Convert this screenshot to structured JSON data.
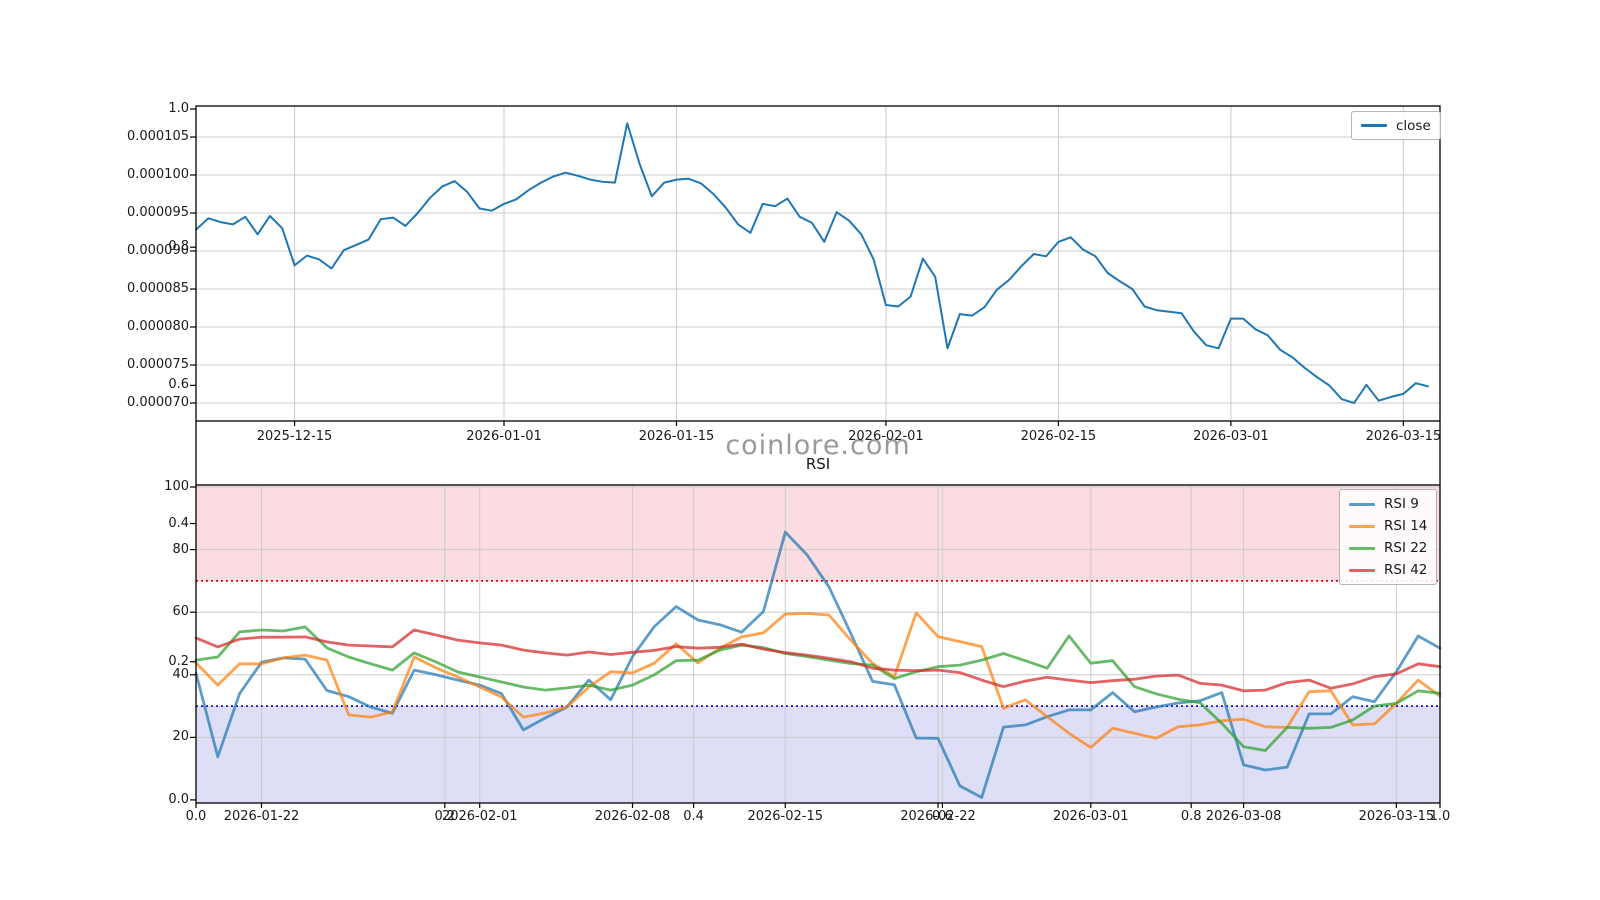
{
  "watermark_text": "coinlore.com",
  "figure_axis": {
    "x_labels": [
      "0.0",
      "0.2",
      "0.4",
      "0.6",
      "0.8",
      "1.0"
    ],
    "y_labels": [
      "1.0",
      "0.8",
      "0.6",
      "0.4",
      "0.2",
      "0.0"
    ]
  },
  "colors": {
    "close_line": "#1f77b4",
    "rsi9_line": "#1f77b4",
    "rsi14_line": "#ff7f0e",
    "rsi22_line": "#2ca02c",
    "rsi42_line": "#d62728",
    "overbought_band": "#fbdce0",
    "oversold_band": "#dedef6",
    "overbought_dotted_line": "#e8000b",
    "oversold_dotted_line": "#1414cc",
    "grid": "#cccccc",
    "spine": "#000000",
    "watermark": "#9a9a9a"
  },
  "chart_data": [
    {
      "type": "line",
      "title": "",
      "legend": [
        "close"
      ],
      "legend_position": "upper right",
      "grid": true,
      "x_tick_labels": [
        "2025-12-15",
        "2026-01-01",
        "2026-01-15",
        "2026-02-01",
        "2026-02-15",
        "2026-03-01",
        "2026-03-15"
      ],
      "x_tick_day_index": [
        8,
        25,
        39,
        56,
        70,
        84,
        98
      ],
      "y_tick_labels": [
        "0.000105",
        "0.000100",
        "0.000095",
        "0.000090",
        "0.000085",
        "0.000080",
        "0.000075",
        "0.000070"
      ],
      "y_tick_values_micro": [
        105,
        100,
        95,
        90,
        85,
        80,
        75,
        70
      ],
      "ylim_micro": [
        67.6,
        109.1
      ],
      "value_unit_note": "values_micro are price x 0.000001",
      "series": [
        {
          "name": "close",
          "color_key": "close_line",
          "values_micro": [
            92.8,
            94.3,
            93.8,
            93.5,
            94.5,
            92.2,
            94.6,
            93.0,
            88.1,
            89.4,
            88.9,
            87.7,
            90.1,
            90.8,
            91.5,
            94.2,
            94.4,
            93.3,
            95.0,
            97.0,
            98.5,
            99.2,
            97.8,
            95.6,
            95.3,
            96.2,
            96.8,
            98.0,
            99.0,
            99.8,
            100.3,
            99.9,
            99.4,
            99.1,
            99.0,
            106.8,
            101.5,
            97.2,
            99.0,
            99.4,
            99.5,
            98.9,
            97.5,
            95.7,
            93.5,
            92.4,
            96.2,
            95.9,
            96.9,
            94.5,
            93.7,
            91.2,
            95.1,
            94.0,
            92.2,
            88.9,
            82.9,
            82.7,
            84.0,
            89.0,
            86.6,
            77.2,
            81.7,
            81.5,
            82.6,
            84.9,
            86.2,
            88.0,
            89.6,
            89.3,
            91.2,
            91.8,
            90.2,
            89.3,
            87.1,
            86.0,
            85.0,
            82.7,
            82.2,
            82.0,
            81.8,
            79.4,
            77.6,
            77.2,
            81.1,
            81.1,
            79.7,
            78.9,
            77.0,
            76.0,
            74.6,
            73.4,
            72.3,
            70.5,
            70.0,
            72.4,
            70.3,
            70.8,
            71.2,
            72.6,
            72.2
          ]
        }
      ]
    },
    {
      "type": "line",
      "title": "RSI",
      "legend": [
        "RSI 9",
        "RSI 14",
        "RSI 22",
        "RSI 42"
      ],
      "legend_position": "upper right",
      "grid": true,
      "x_tick_labels": [
        "2026-01-22",
        "2026-02-01",
        "2026-02-08",
        "2026-02-15",
        "2026-02-22",
        "2026-03-01",
        "2026-03-08",
        "2026-03-15"
      ],
      "x_tick_day_index": [
        3,
        13,
        20,
        27,
        34,
        41,
        48,
        55
      ],
      "y_tick_labels": [
        "100",
        "80",
        "60",
        "40",
        "20"
      ],
      "y_tick_values": [
        100,
        80,
        60,
        40,
        20
      ],
      "ylim": [
        -1,
        100.6
      ],
      "overbought_level": 70,
      "oversold_level": 30,
      "series": [
        {
          "name": "RSI 9",
          "color_key": "rsi9_line",
          "values": [
            40.5,
            13.8,
            34,
            44,
            45.4,
            45,
            35,
            33,
            29.7,
            27.7,
            41.5,
            40,
            38.3,
            36.7,
            34,
            22.4,
            26.2,
            29.7,
            38.3,
            32,
            45.8,
            55.4,
            61.8,
            57.5,
            56,
            53.6,
            60.2,
            85.6,
            78.3,
            68.1,
            53.3,
            37.9,
            36.8,
            19.8,
            19.7,
            4.5,
            0.8,
            23.3,
            24,
            26.6,
            28.8,
            28.8,
            34.3,
            28.2,
            29.7,
            31,
            31.7,
            34.3,
            11.2,
            9.6,
            10.5,
            27.5,
            27.5,
            33,
            31.4,
            41,
            52.4,
            48.5
          ]
        },
        {
          "name": "RSI 14",
          "color_key": "rsi14_line",
          "values": [
            43.8,
            36.7,
            43.5,
            43.5,
            45.4,
            46.3,
            44.7,
            27.2,
            26.5,
            28.1,
            45.7,
            42.2,
            39.3,
            36.1,
            32.9,
            26.5,
            27.8,
            29.7,
            36.1,
            41,
            40.6,
            43.7,
            49.9,
            43.8,
            48.5,
            52.1,
            53.4,
            59.4,
            59.6,
            59.1,
            51.1,
            43.6,
            39.4,
            59.8,
            52.2,
            50.6,
            49,
            29.3,
            32,
            26.6,
            21.3,
            16.8,
            22.9,
            21.3,
            19.7,
            23.4,
            24,
            25.3,
            25.8,
            23.4,
            23.2,
            34.6,
            34.9,
            24,
            24.3,
            30.9,
            38.3,
            33.2
          ]
        },
        {
          "name": "RSI 22",
          "color_key": "rsi22_line",
          "values": [
            44.7,
            45.7,
            53.7,
            54.3,
            54,
            55.3,
            48.6,
            45.7,
            43.5,
            41.5,
            47,
            44.1,
            40.9,
            39.3,
            37.7,
            36.1,
            35.1,
            35.8,
            36.7,
            35.1,
            36.7,
            40,
            44.5,
            44.7,
            47.9,
            49.5,
            48.7,
            46.8,
            45.8,
            44.7,
            43.6,
            43.1,
            38.8,
            41,
            42.6,
            43.1,
            44.7,
            46.8,
            44.5,
            42.1,
            52.4,
            43.7,
            44.5,
            36.2,
            33.9,
            32.2,
            31.1,
            24.5,
            17,
            15.8,
            23.2,
            22.9,
            23.2,
            25.6,
            30,
            30.9,
            34.9,
            34.1
          ]
        },
        {
          "name": "RSI 42",
          "color_key": "rsi42_line",
          "values": [
            51.8,
            48.9,
            51.4,
            52,
            52,
            52.1,
            50.5,
            49.5,
            49.2,
            48.9,
            54.3,
            52.7,
            51.1,
            50.2,
            49.5,
            47.9,
            47,
            46.3,
            47.3,
            46.5,
            47.2,
            47.8,
            49,
            48.5,
            48.8,
            49.8,
            48.2,
            47.1,
            46.3,
            45.3,
            44.2,
            42.1,
            41.5,
            41.3,
            41.5,
            40.7,
            38.3,
            36.2,
            38,
            39.2,
            38.3,
            37.5,
            38.1,
            38.6,
            39.6,
            39.9,
            37.3,
            36.7,
            34.9,
            35.1,
            37.5,
            38.3,
            35.7,
            37.1,
            39.4,
            40.3,
            43.5,
            42.6
          ]
        }
      ]
    }
  ]
}
